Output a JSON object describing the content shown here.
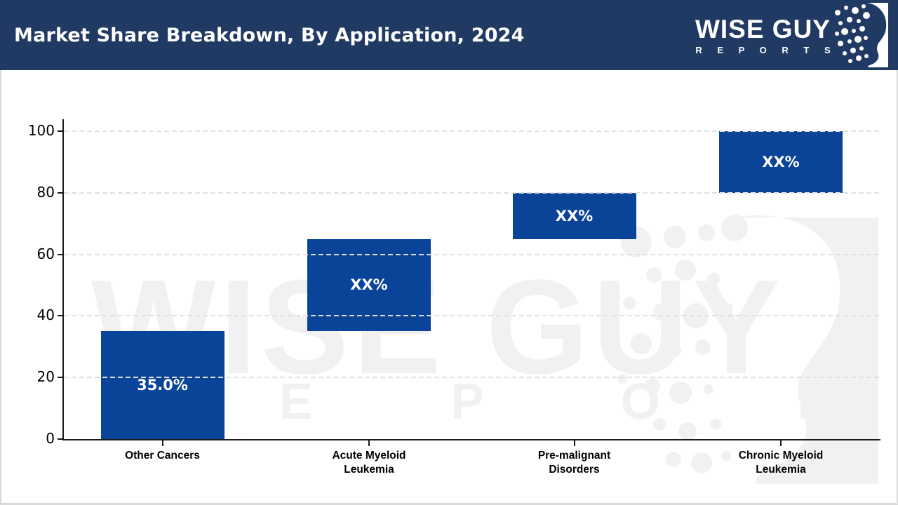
{
  "header": {
    "title": "Market Share Breakdown, By Application, 2024",
    "logo": {
      "line1": "WISE GUY",
      "line2": "R E P O R T S"
    }
  },
  "watermark": {
    "line1": "WISE GUY",
    "line2": "R E P O R T S"
  },
  "colors": {
    "header_bg": "#213A64",
    "header_text": "#FFFFFF",
    "bar": "#0A4499",
    "bar_label": "#FFFFFF",
    "grid": "#E0E0E0",
    "axis": "#1A1A1A",
    "watermark": "#F1F1F3"
  },
  "chart_data": {
    "type": "bar",
    "subtype": "waterfall",
    "title": "Market Share Breakdown, By Application, 2024",
    "xlabel": "",
    "ylabel": "",
    "ylim": [
      0,
      100
    ],
    "grid": "horizontal-dashed",
    "legend": "none",
    "y_ticks": [
      0,
      20,
      40,
      60,
      80,
      100
    ],
    "categories": [
      [
        "Other Cancers"
      ],
      [
        "Acute Myeloid",
        "Leukemia"
      ],
      [
        "Pre-malignant",
        "Disorders"
      ],
      [
        "Chronic Myeloid",
        "Leukemia"
      ]
    ],
    "segments": [
      {
        "category": "Other Cancers",
        "start": 0,
        "end": 35,
        "value": 35,
        "label": "35.0%"
      },
      {
        "category": "Acute Myeloid Leukemia",
        "start": 35,
        "end": 65,
        "value": 30,
        "label": "XX%"
      },
      {
        "category": "Pre-malignant Disorders",
        "start": 65,
        "end": 80,
        "value": 15,
        "label": "XX%"
      },
      {
        "category": "Chronic Myeloid Leukemia",
        "start": 80,
        "end": 100,
        "value": 20,
        "label": "XX%"
      }
    ]
  }
}
